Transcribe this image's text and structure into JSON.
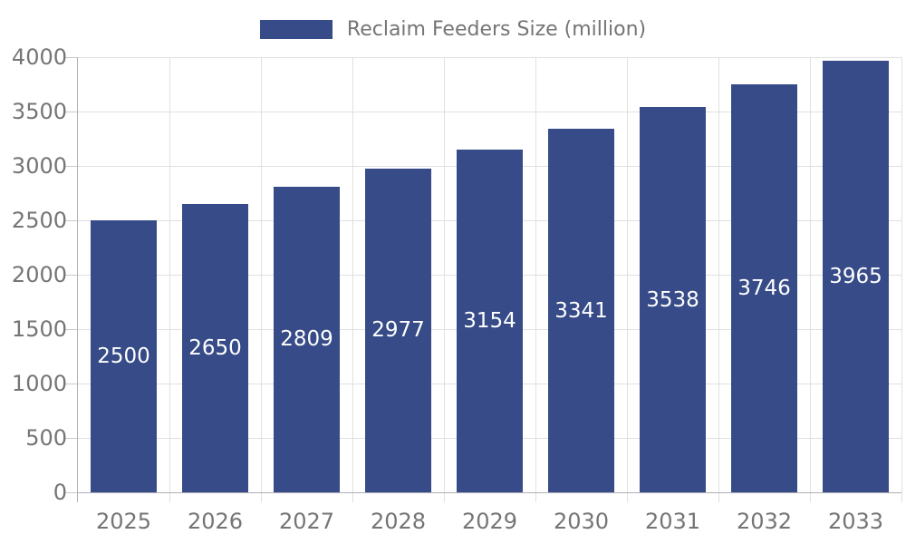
{
  "legend": {
    "label": "Reclaim Feeders Size (million)"
  },
  "chart_data": {
    "type": "bar",
    "title": "Reclaim Feeders Size (million)",
    "series_name": "Reclaim Feeders Size (million)",
    "categories": [
      "2025",
      "2026",
      "2027",
      "2028",
      "2029",
      "2030",
      "2031",
      "2032",
      "2033"
    ],
    "values": [
      2500,
      2650,
      2809,
      2977,
      3154,
      3341,
      3538,
      3746,
      3965
    ],
    "xlabel": "",
    "ylabel": "",
    "ylim": [
      0,
      4000
    ],
    "yticks": [
      0,
      500,
      1000,
      1500,
      2000,
      2500,
      3000,
      3500,
      4000
    ],
    "grid": true,
    "legend_position": "top-center",
    "value_labels": "inside-center"
  },
  "colors": {
    "bar": "#364b87",
    "bar_label": "#ffffff",
    "grid": "#e0e0e0",
    "axis": "#b0b0b6",
    "tick": "#c9c9c9",
    "text": "#757575",
    "background": "#ffffff"
  }
}
